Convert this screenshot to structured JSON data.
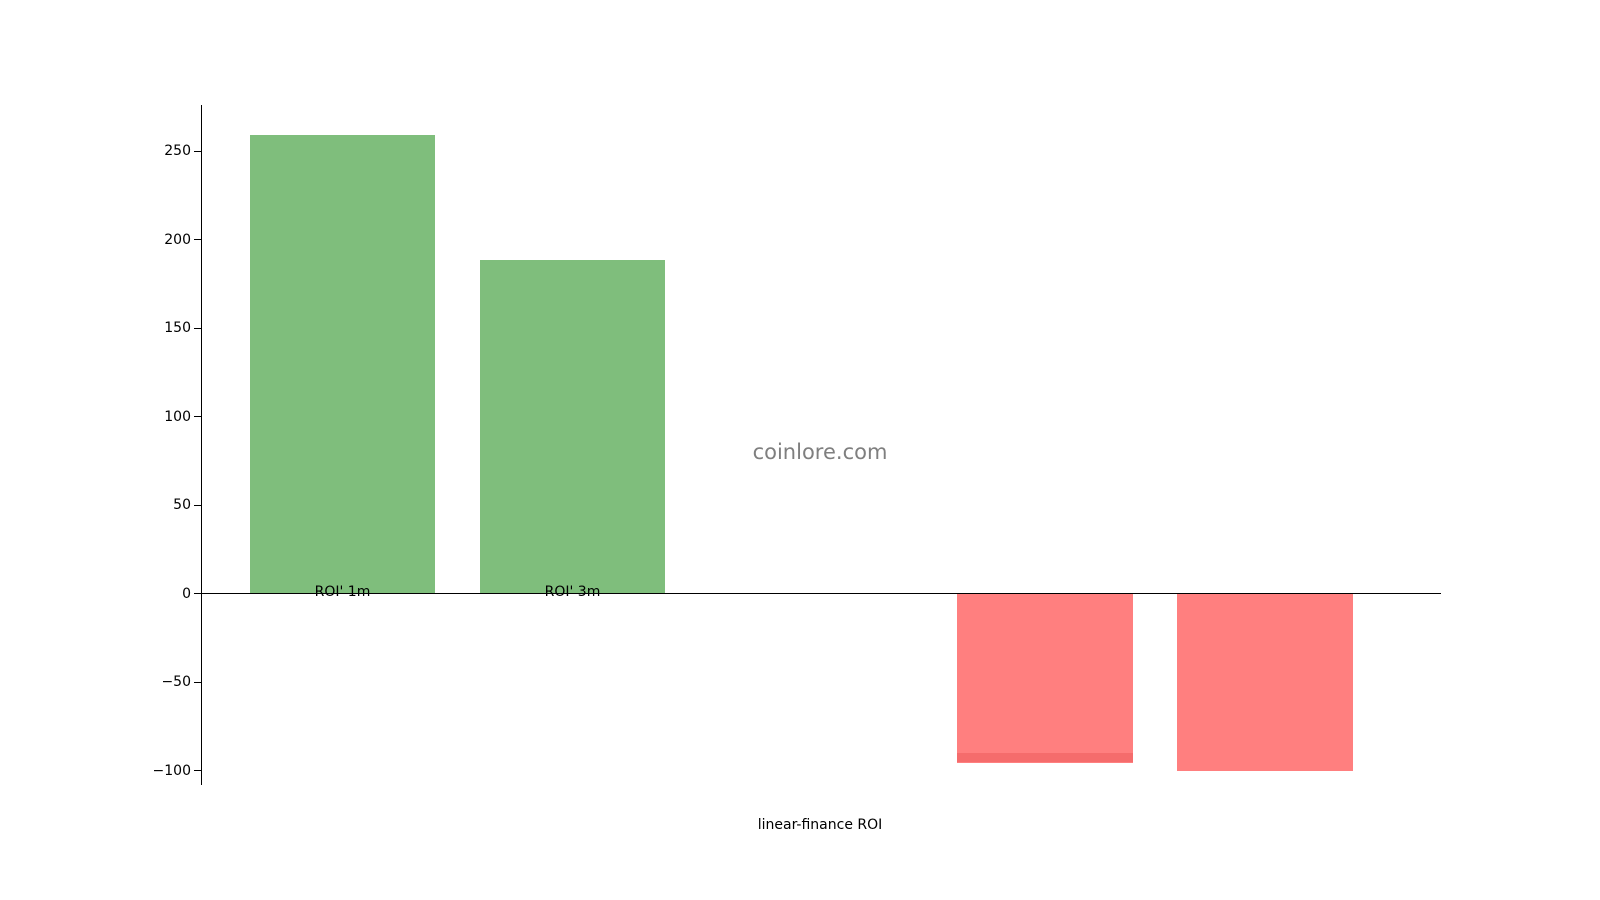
{
  "title": "linear-finance ROI",
  "watermark": "coinlore.com",
  "colors": {
    "positive_bar": "#7fbe7c",
    "negative_bar": "#ff7f7f",
    "negative_bar_inner_edge": "rgba(220,60,60,0.28)",
    "axis": "#000000",
    "watermark_text": "#7f7f7f",
    "title_text": "#000000"
  },
  "chart_data": {
    "type": "bar",
    "title": "linear-finance ROI",
    "watermark": "coinlore.com",
    "categories": [
      "ROI' 1m",
      "ROI' 3m",
      "",
      "",
      ""
    ],
    "values": [
      259,
      188,
      0,
      -95.5,
      -100
    ],
    "bar_colors": [
      "#7fbe7c",
      "#7fbe7c",
      "#7fbe7c",
      "#ff7f7f",
      "#ff7f7f"
    ],
    "negative_inner_edge": {
      "bar_index": 3,
      "value": -90.5
    },
    "yticks": [
      250,
      200,
      150,
      100,
      50,
      0,
      -50,
      -100
    ],
    "ytick_labels": [
      "250",
      "200",
      "150",
      "100",
      "50",
      "0",
      "−50",
      "−100"
    ],
    "ylim": [
      -108,
      275
    ],
    "xlabel": "",
    "ylabel": "",
    "grid": false,
    "legend": null
  }
}
